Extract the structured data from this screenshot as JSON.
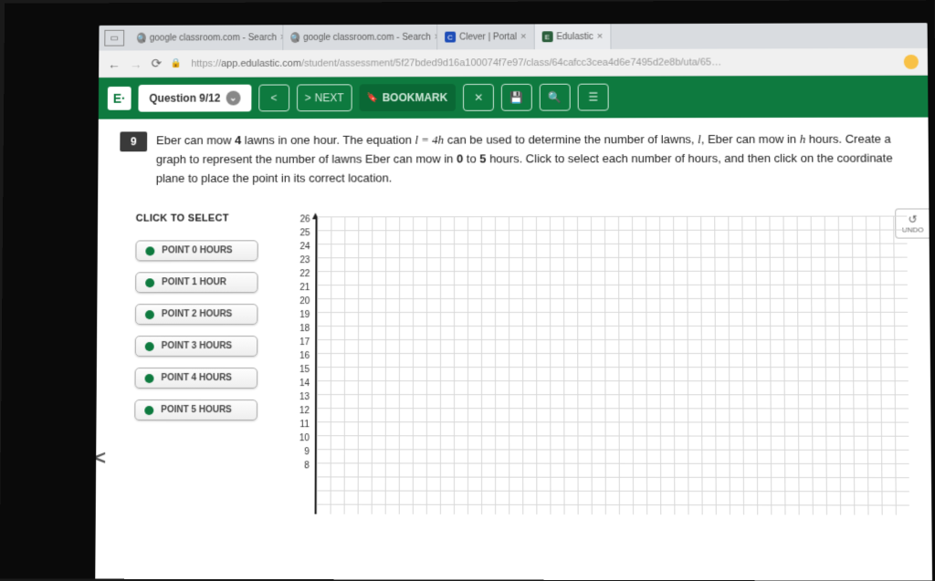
{
  "browser": {
    "tabs": [
      {
        "label": "google classroom.com - Search",
        "type": "g"
      },
      {
        "label": "google classroom.com - Search",
        "type": "g"
      },
      {
        "label": "Clever | Portal",
        "type": "c"
      },
      {
        "label": "Edulastic",
        "type": "e"
      }
    ],
    "url_prefix": "https://",
    "url_host": "app.edulastic.com",
    "url_path": "/student/assessment/5f27bded9d16a100074f7e97/class/64cafcc3cea4d6e7495d2e8b/uta/65…"
  },
  "toolbar": {
    "logo": "E",
    "question_label": "Question 9/12",
    "prev": "<",
    "next": "NEXT",
    "bookmark": "BOOKMARK"
  },
  "question": {
    "number": "9",
    "text_1": "Eber can mow ",
    "bold_4": "4",
    "text_2": " lawns in one hour. The equation ",
    "eq": "l = 4h",
    "text_3": " can be used to determine the number of lawns, ",
    "var_l": "l",
    "text_4": ", Eber can mow in ",
    "var_h": "h",
    "text_5": " hours. Create a graph to represent the number of lawns Eber can mow in ",
    "bold_0": "0",
    "text_6": " to ",
    "bold_5": "5",
    "text_7": " hours. Click to select each number of hours, and then click on the coordinate plane to place the point in its correct location."
  },
  "undo": "UNDO",
  "selectors": {
    "header": "CLICK TO SELECT",
    "buttons": [
      "POINT 0 HOURS",
      "POINT 1 HOUR",
      "POINT 2 HOURS",
      "POINT 3 HOURS",
      "POINT 4 HOURS",
      "POINT 5 HOURS"
    ]
  },
  "graph": {
    "ylabels": [
      "26",
      "25",
      "24",
      "23",
      "22",
      "21",
      "20",
      "19",
      "18",
      "17",
      "16",
      "15",
      "14",
      "13",
      "12",
      "11",
      "10",
      "9",
      "8"
    ],
    "grid_color": "#d8d8d8",
    "axis_color": "#222222",
    "cell_size": 15
  },
  "colors": {
    "brand_green": "#0e7a3f",
    "toolbar_green": "#0e7a3f",
    "bg": "#ffffff"
  }
}
